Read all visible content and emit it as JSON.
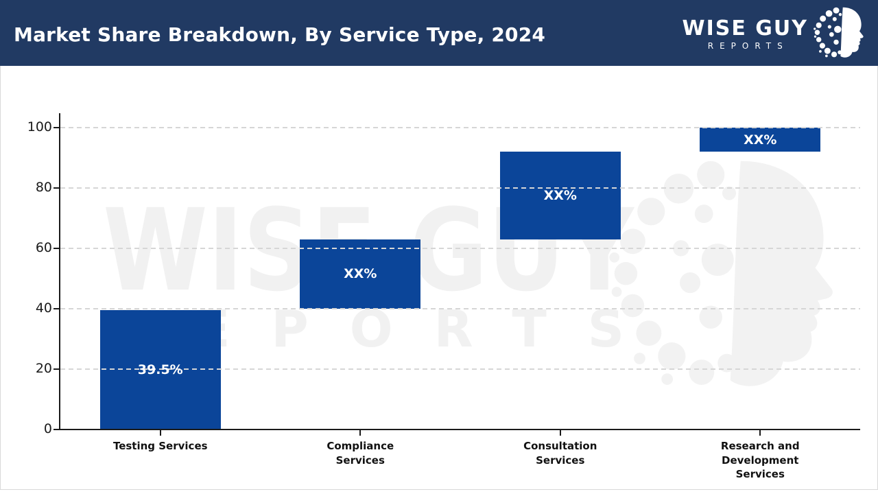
{
  "header": {
    "title": "Market Share Breakdown, By Service Type, 2024",
    "logo_line1": "WISE GUY",
    "logo_line2": "REPORTS",
    "bg_color": "#213A63"
  },
  "watermark": {
    "line1": "WISE GUY",
    "line2": "REPORTS"
  },
  "chart_data": {
    "type": "bar",
    "subtype": "waterfall",
    "title": "Market Share Breakdown, By Service Type, 2024",
    "categories": [
      "Testing Services",
      "Compliance Services",
      "Consultation Services",
      "Research and Development Services"
    ],
    "category_lines": [
      [
        "Testing Services"
      ],
      [
        "Compliance",
        "Services"
      ],
      [
        "Consultation",
        "Services"
      ],
      [
        "Research and",
        "Development",
        "Services"
      ]
    ],
    "segments": [
      {
        "category": "Testing Services",
        "base": 0,
        "top": 39.5,
        "label": "39.5%"
      },
      {
        "category": "Compliance Services",
        "base": 40,
        "top": 63,
        "label": "XX%"
      },
      {
        "category": "Consultation Services",
        "base": 63,
        "top": 92,
        "label": "XX%"
      },
      {
        "category": "Research and Development Services",
        "base": 92,
        "top": 100,
        "label": "XX%"
      }
    ],
    "ylim": [
      0,
      100
    ],
    "yticks": [
      0,
      20,
      40,
      60,
      80,
      100
    ],
    "grid": "dashed horizontal, drawn above bars",
    "legend": "none",
    "bar_color": "#0B4599",
    "value_label_color": "#FFFFFF",
    "axis_color": "#1a1a1a",
    "gridline_color": "#d6d6d6"
  }
}
